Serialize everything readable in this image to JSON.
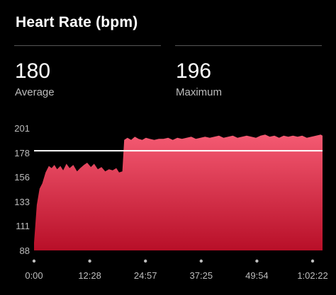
{
  "header": {
    "title": "Heart Rate (bpm)"
  },
  "stats": [
    {
      "value": "180",
      "label": "Average"
    },
    {
      "value": "196",
      "label": "Maximum"
    }
  ],
  "colors": {
    "fill_top": "#f45a72",
    "fill_bottom": "#b80f28",
    "line": "#ff4a66",
    "average_line": "#ffffff"
  },
  "chart_data": {
    "type": "area",
    "ylim": [
      88,
      201
    ],
    "yticks": [
      201,
      178,
      156,
      133,
      111,
      88
    ],
    "xticks": [
      "0:00",
      "12:28",
      "24:57",
      "37:25",
      "49:54",
      "1:02:22"
    ],
    "average": 180,
    "x_minutes": [
      0,
      0.6,
      1.2,
      1.8,
      2.5,
      3.2,
      3.8,
      4.4,
      5.0,
      5.7,
      6.3,
      7.0,
      7.7,
      8.5,
      9.3,
      10.0,
      10.8,
      11.5,
      12.3,
      13.0,
      13.8,
      14.6,
      15.4,
      16.2,
      17.0,
      17.8,
      18.4,
      19.1,
      19.5,
      20.2,
      21.0,
      21.8,
      22.6,
      23.4,
      24.2,
      25.0,
      26.0,
      27.0,
      28.0,
      29.0,
      30.0,
      31.0,
      32.0,
      33.0,
      34.0,
      35.0,
      36.0,
      37.0,
      38.0,
      39.0,
      40.0,
      41.0,
      42.0,
      43.0,
      44.0,
      45.0,
      46.0,
      47.0,
      48.0,
      49.0,
      50.0,
      51.0,
      52.0,
      53.0,
      54.0,
      55.0,
      56.0,
      57.0,
      58.0,
      59.0,
      60.0,
      61.0,
      62.0,
      62.4
    ],
    "bpm": [
      95,
      130,
      145,
      150,
      160,
      166,
      164,
      167,
      163,
      166,
      162,
      168,
      164,
      167,
      161,
      164,
      167,
      169,
      165,
      168,
      163,
      165,
      161,
      163,
      162,
      164,
      160,
      161,
      190,
      192,
      190,
      193,
      191,
      190,
      192,
      191,
      190,
      191,
      191,
      192,
      190,
      192,
      191,
      192,
      193,
      191,
      192,
      193,
      192,
      193,
      194,
      192,
      193,
      194,
      192,
      193,
      194,
      193,
      192,
      194,
      195,
      193,
      194,
      192,
      194,
      193,
      194,
      193,
      194,
      192,
      193,
      194,
      195,
      194
    ]
  }
}
